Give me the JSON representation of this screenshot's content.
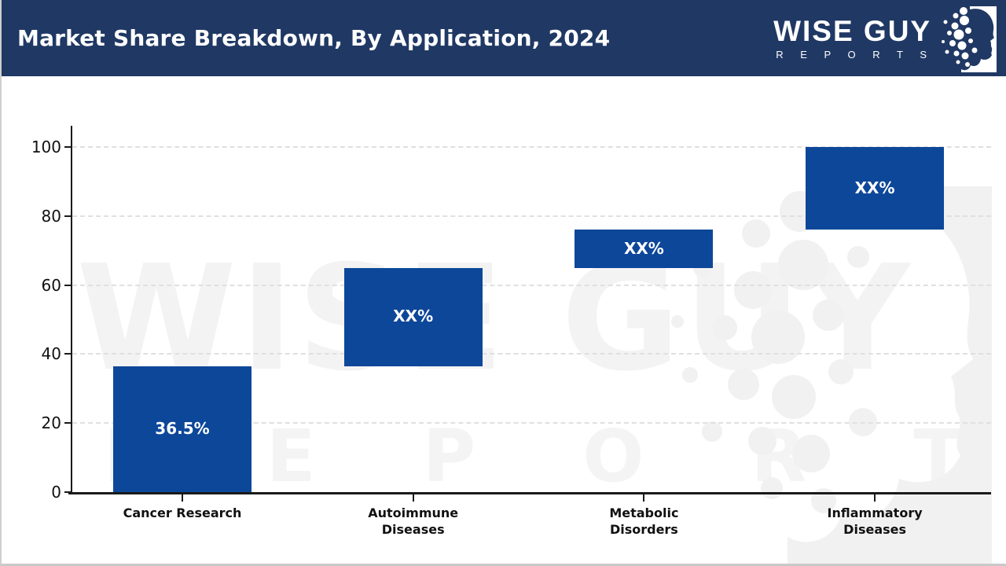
{
  "header": {
    "title": "Market Share Breakdown, By Application, 2024",
    "logo": {
      "line1": "WISE GUY",
      "line2": "R E P O R T S"
    }
  },
  "watermark": {
    "line1": "WISE GUY",
    "line2": "R E P O R T S"
  },
  "colors": {
    "header_bg": "#203864",
    "bar": "#0d4799",
    "bar_label": "#ffffff",
    "grid": "#e0e0e0",
    "axis": "#1a1a1a",
    "watermark": "#f3f3f3"
  },
  "chart_data": {
    "type": "bar",
    "variant": "floating-waterfall",
    "title": "Market Share Breakdown, By Application, 2024",
    "categories": [
      "Cancer Research",
      "Autoimmune Diseases",
      "Metabolic Disorders",
      "Inflammatory Diseases"
    ],
    "category_label_lines": [
      [
        "Cancer Research"
      ],
      [
        "Autoimmune",
        "Diseases"
      ],
      [
        "Metabolic",
        "Disorders"
      ],
      [
        "Inflammatory",
        "Diseases"
      ]
    ],
    "segments": [
      {
        "category": "Cancer Research",
        "from": 0,
        "to": 36.5,
        "label": "36.5%"
      },
      {
        "category": "Autoimmune Diseases",
        "from": 36.5,
        "to": 65,
        "label": "XX%"
      },
      {
        "category": "Metabolic Disorders",
        "from": 65,
        "to": 76,
        "label": "XX%"
      },
      {
        "category": "Inflammatory Diseases",
        "from": 76,
        "to": 100,
        "label": "XX%"
      }
    ],
    "xlabel": "",
    "ylabel": "",
    "ylim": [
      0,
      100
    ],
    "yticks": [
      0,
      20,
      40,
      60,
      80,
      100
    ],
    "grid": true,
    "legend": false
  }
}
